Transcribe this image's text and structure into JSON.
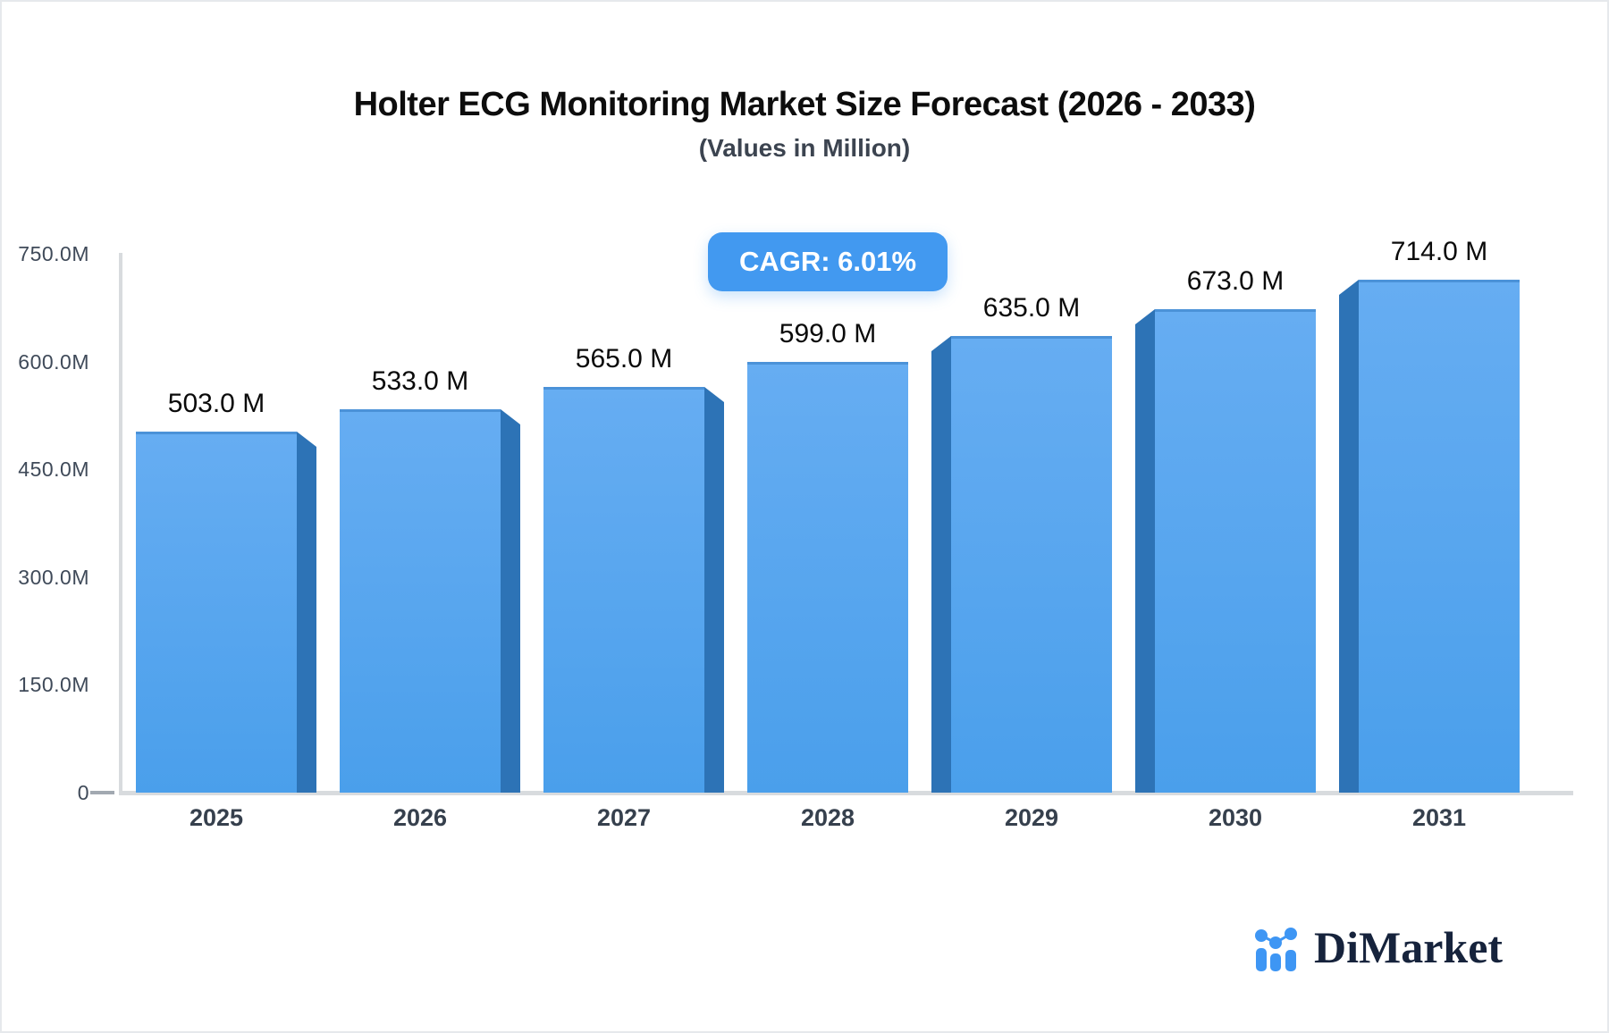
{
  "header": {
    "title": "Holter ECG Monitoring Market Size Forecast (2026 - 2033)",
    "subtitle": "(Values in Million)",
    "cagr_badge": "CAGR: 6.01%"
  },
  "chart_data": {
    "type": "bar",
    "title": "Holter ECG Monitoring Market Size Forecast (2026 - 2033)",
    "subtitle": "(Values in Million)",
    "annotation": "CAGR: 6.01%",
    "categories": [
      "2025",
      "2026",
      "2027",
      "2028",
      "2029",
      "2030",
      "2031"
    ],
    "values": [
      503.0,
      533.0,
      565.0,
      599.0,
      635.0,
      673.0,
      714.0
    ],
    "value_labels": [
      "503.0 M",
      "533.0 M",
      "565.0 M",
      "599.0 M",
      "635.0 M",
      "673.0 M",
      "714.0 M"
    ],
    "unit": "Million",
    "ylim": [
      0,
      750
    ],
    "yticks": [
      {
        "value": 750,
        "label": "750.0M"
      },
      {
        "value": 600,
        "label": "600.0M"
      },
      {
        "value": 450,
        "label": "450.0M"
      },
      {
        "value": 300,
        "label": "300.0M"
      },
      {
        "value": 150,
        "label": "150.0M"
      },
      {
        "value": 0,
        "label": "0"
      }
    ],
    "grid": false,
    "legend": false,
    "bar_style": "3d-perspective"
  },
  "branding": {
    "logo_text": "DiMarket",
    "logo_icon": "bar-chart-logo-icon"
  },
  "colors": {
    "bar_front_top": "#66adf2",
    "bar_front_bottom": "#4a9feb",
    "bar_front_edge": "#4b92d8",
    "bar_side": "#2d73b6",
    "badge_bg": "#4299f0",
    "axis_line": "#d8dbde",
    "tick_text": "#3f4a59",
    "xlabel_text": "#36404d",
    "value_text": "#0a0a0a",
    "logo_text_color": "#16233c",
    "logo_icon_color": "#3e96f4"
  }
}
